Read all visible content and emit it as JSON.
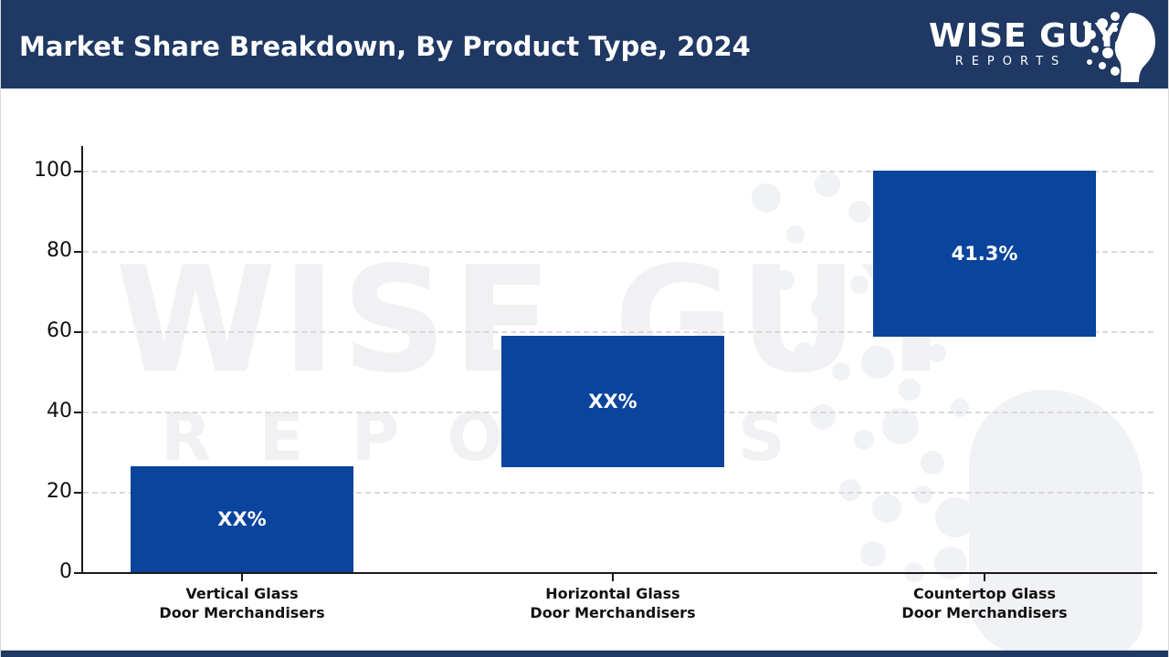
{
  "colors": {
    "header_navy": "#1f3864",
    "bar_blue": "#0a449c",
    "grid_gray": "#d9d9d9",
    "watermark_gray": "#f1f1f4",
    "text_black": "#111111",
    "text_white": "#ffffff"
  },
  "header": {
    "title": "Market Share Breakdown, By Product Type, 2024"
  },
  "logo": {
    "wordmark": "WISE GUY",
    "sub": "REPORTS"
  },
  "watermark": {
    "line1": "WISE GUY",
    "line2": "REPORTS"
  },
  "chart_data": {
    "type": "bar",
    "variant": "floating stacked segments (waterfall-style market share breakdown)",
    "title": "Market Share Breakdown, By Product Type, 2024",
    "categories": [
      "Vertical Glass Door Merchandisers",
      "Horizontal Glass Door Merchandisers",
      "Countertop Glass Door Merchandisers"
    ],
    "category_lines": [
      [
        "Vertical Glass",
        "Door Merchandisers"
      ],
      [
        "Horizontal Glass",
        "Door Merchandisers"
      ],
      [
        "Countertop Glass",
        "Door Merchandisers"
      ]
    ],
    "series": [
      {
        "name": "Market Share (%)",
        "segments": [
          {
            "category": "Vertical Glass Door Merchandisers",
            "from": 0,
            "to": 26.4,
            "label": "XX%"
          },
          {
            "category": "Horizontal Glass Door Merchandisers",
            "from": 26.1,
            "to": 58.9,
            "label": "XX%"
          },
          {
            "category": "Countertop Glass Door Merchandisers",
            "from": 58.7,
            "to": 100,
            "label": "41.3%"
          }
        ]
      }
    ],
    "value_labels": [
      "XX%",
      "XX%",
      "41.3%"
    ],
    "ylim": [
      0,
      100
    ],
    "yticks": [
      0,
      20,
      40,
      60,
      80,
      100
    ],
    "xlabel": "",
    "ylabel": "",
    "legend": "none",
    "grid": {
      "horizontal": true,
      "style": "dashed"
    }
  }
}
